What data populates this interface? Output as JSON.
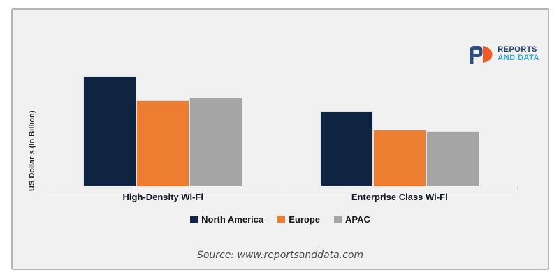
{
  "panel": {
    "background": "#f1f1f1",
    "border_color": "#b5b5b5"
  },
  "logo": {
    "line1": "REPORTS",
    "line2": "AND DATA",
    "navy": "#1c3e6e",
    "cyan": "#29abe2",
    "orange": "#f15a24",
    "monogram_blue": "#2d4e80"
  },
  "chart_data": {
    "type": "bar",
    "title": "",
    "xlabel": "",
    "ylabel": "US Dollar s (In Billion)",
    "categories": [
      "High-Density Wi-Fi",
      "Enterprise Class Wi-Fi"
    ],
    "series": [
      {
        "name": "North America",
        "color": "#0f2441",
        "values": [
          15.8,
          10.8
        ]
      },
      {
        "name": "Europe",
        "color": "#ed7d31",
        "values": [
          12.3,
          8.1
        ]
      },
      {
        "name": "APAC",
        "color": "#a6a6a6",
        "values": [
          12.7,
          7.9
        ]
      }
    ],
    "ylim": [
      0,
      21.3
    ],
    "grid": false,
    "legend_position": "bottom",
    "axis_ticks_visible": true,
    "y_tick_labels_visible": false
  },
  "source": {
    "text": "Source: www.reportsanddata.com"
  }
}
